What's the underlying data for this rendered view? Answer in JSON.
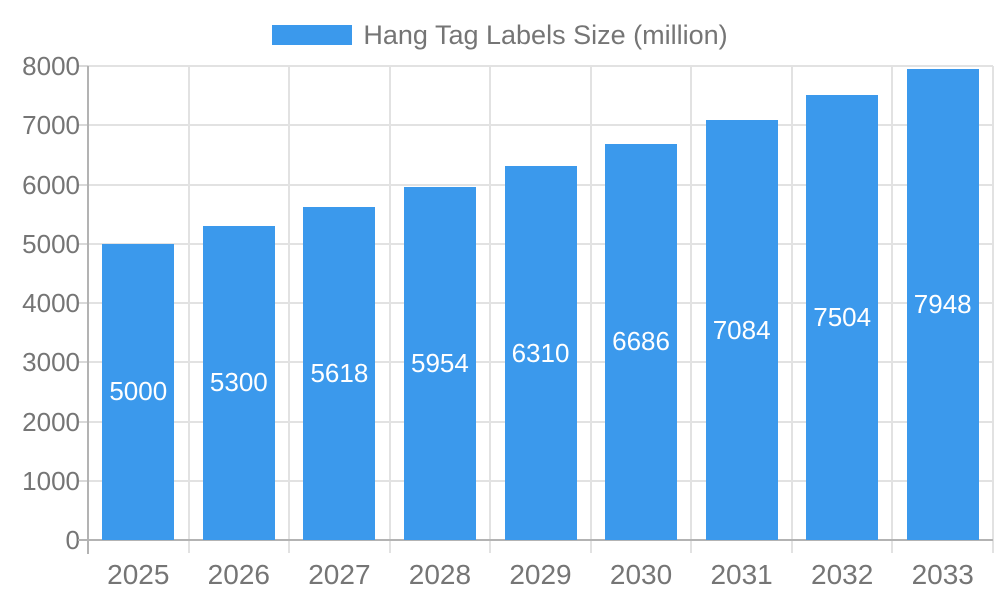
{
  "chart_data": {
    "type": "bar",
    "title": "Hang Tag Labels Size (million)",
    "categories": [
      "2025",
      "2026",
      "2027",
      "2028",
      "2029",
      "2030",
      "2031",
      "2032",
      "2033"
    ],
    "values": [
      5000,
      5300,
      5618,
      5954,
      6310,
      6686,
      7084,
      7504,
      7948
    ],
    "xlabel": "",
    "ylabel": "",
    "ylim": [
      0,
      8000
    ],
    "ytick_step": 1000,
    "ytick_labels": [
      "0",
      "1000",
      "2000",
      "3000",
      "4000",
      "5000",
      "6000",
      "7000",
      "8000"
    ],
    "grid": true,
    "legend_position": "top-center",
    "value_labels_inside_bars": true,
    "colors": {
      "bar": "#3b99ec",
      "bar_value_text": "#ffffff",
      "axis_text": "#757575",
      "grid_line": "#e2e2e2",
      "axis_line": "#b3b3b3",
      "background": "#ffffff"
    }
  }
}
